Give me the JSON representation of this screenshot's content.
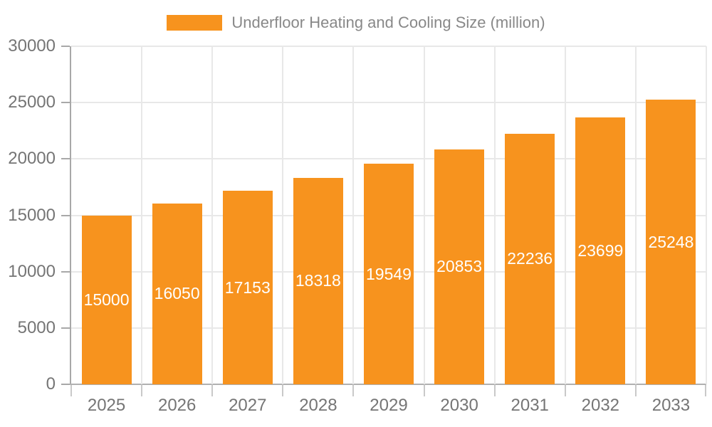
{
  "chart_data": {
    "type": "bar",
    "legend": "Underfloor Heating and Cooling Size (million)",
    "legend_position": "top",
    "categories": [
      "2025",
      "2026",
      "2027",
      "2028",
      "2029",
      "2030",
      "2031",
      "2032",
      "2033"
    ],
    "values": [
      15000,
      16050,
      17153,
      18318,
      19549,
      20853,
      22236,
      23699,
      25248
    ],
    "title": "",
    "xlabel": "",
    "ylabel": "",
    "ylim": [
      0,
      30000
    ],
    "yticks": [
      0,
      5000,
      10000,
      15000,
      20000,
      25000,
      30000
    ],
    "grid": true,
    "bar_color": "#F7931E",
    "value_label_color": "#FFFFFF",
    "axis_text_color": "#757575",
    "legend_text_color": "#888888"
  }
}
